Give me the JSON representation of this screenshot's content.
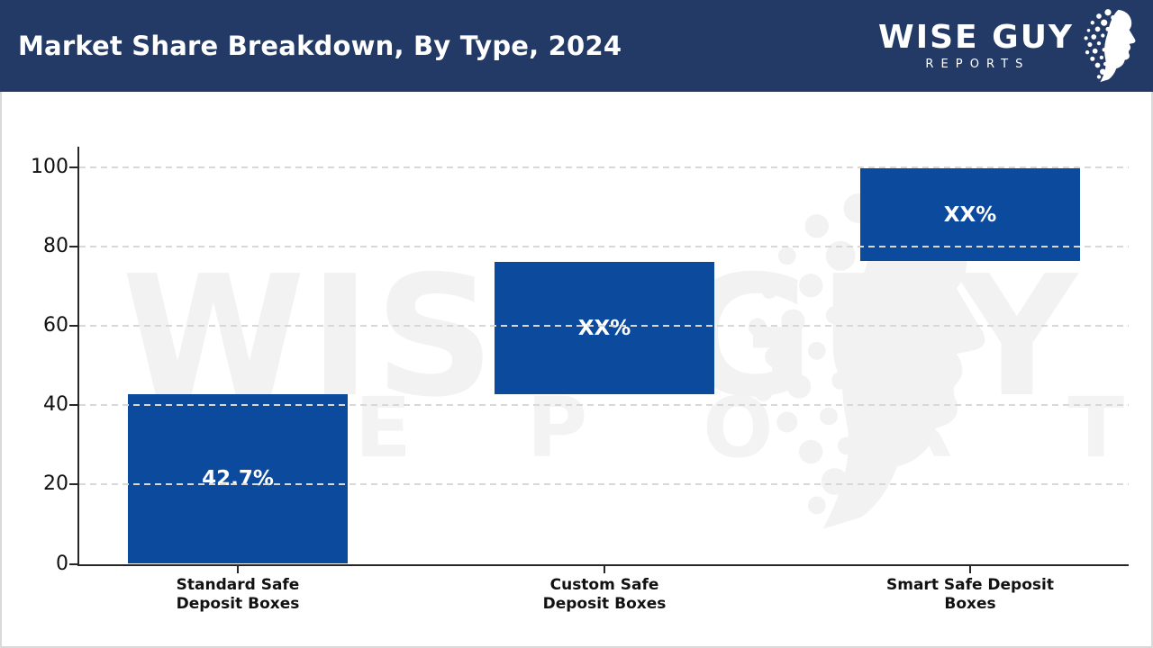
{
  "header": {
    "title": "Market Share Breakdown, By Type, 2024",
    "logo": {
      "line1": "WISE GUY",
      "line2": "REPORTS"
    }
  },
  "watermark": {
    "line1": "WISE GUY",
    "line2": "R E P O R T S"
  },
  "chart_data": {
    "type": "bar",
    "subtype": "floating-waterfall",
    "title": "Market Share Breakdown, By Type, 2024",
    "categories": [
      "Standard Safe\nDeposit Boxes",
      "Custom Safe\nDeposit Boxes",
      "Smart Safe Deposit\nBoxes"
    ],
    "bars": [
      {
        "category": "Standard Safe Deposit Boxes",
        "start": 0,
        "end": 42.7,
        "label": "42.7%"
      },
      {
        "category": "Custom Safe Deposit Boxes",
        "start": 42.7,
        "end": 76.1,
        "label": "XX%"
      },
      {
        "category": "Smart Safe Deposit Boxes",
        "start": 76.3,
        "end": 99.7,
        "label": "XX%"
      }
    ],
    "xlabel": "",
    "ylabel": "",
    "ylim": [
      0,
      100
    ],
    "yticks": [
      0,
      20,
      40,
      60,
      80,
      100
    ],
    "grid": "dashed-horizontal",
    "legend": "none",
    "bar_color": "#0c4a9e",
    "bar_label_color": "#ffffff",
    "axis_color": "#262626",
    "grid_color": "#d8d8d8",
    "header_color": "#233a66"
  }
}
